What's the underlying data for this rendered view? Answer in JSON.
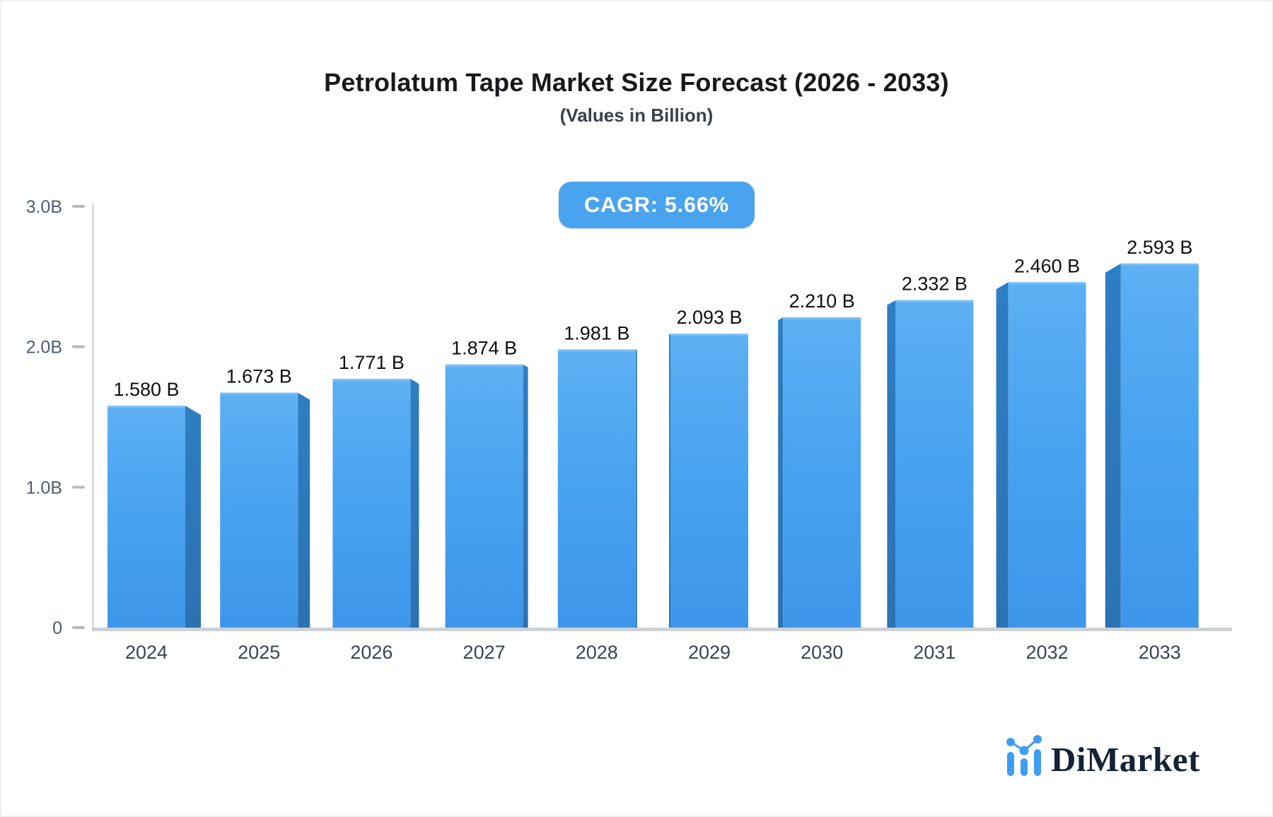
{
  "header": {
    "title": "Petrolatum Tape Market Size Forecast (2026 - 2033)",
    "subtitle": "(Values in Billion)",
    "cagr_badge": "CAGR: 5.66%"
  },
  "chart_data": {
    "type": "bar",
    "title": "Petrolatum Tape Market Size Forecast (2026 - 2033)",
    "subtitle": "(Values in Billion)",
    "xlabel": "",
    "ylabel": "",
    "categories": [
      "2024",
      "2025",
      "2026",
      "2027",
      "2028",
      "2029",
      "2030",
      "2031",
      "2032",
      "2033"
    ],
    "values": [
      1.58,
      1.673,
      1.771,
      1.874,
      1.981,
      2.093,
      2.21,
      2.332,
      2.46,
      2.593
    ],
    "bar_labels": [
      "1.580 B",
      "1.673 B",
      "1.771 B",
      "1.874 B",
      "1.981 B",
      "2.093 B",
      "2.210 B",
      "2.332 B",
      "2.460 B",
      "2.593 B"
    ],
    "ylim": [
      0,
      3
    ],
    "yticks": [
      {
        "value": 0,
        "label": "0"
      },
      {
        "value": 1,
        "label": "1.0B"
      },
      {
        "value": 2,
        "label": "2.0B"
      },
      {
        "value": 3,
        "label": "3.0B"
      }
    ],
    "grid": false,
    "legend": false,
    "unit": "Billion",
    "cagr": "5.66%"
  },
  "colors": {
    "bar_front_top": "#5db0f3",
    "bar_front_mid": "#47a2f0",
    "bar_front_bottom": "#3e96ea",
    "bar_side_top": "#2e7ec4",
    "bar_side_bottom": "#2b72b2",
    "bar_top_edge": "#7cc0f5",
    "badge_bg": "#4aa3ef",
    "axis_line": "#dbdcde",
    "tick_dash": "#b6bac0",
    "baseline": "#cdd0d5",
    "value_label": "#0d0f12",
    "year_label": "#3a4450",
    "ytick_label": "#4e5d6e",
    "logo_blue": "#3f9cf3",
    "logo_text": "#152238"
  },
  "branding": {
    "logo_text": "DiMarket",
    "logo_icon": "bar-chart-logo-icon"
  }
}
